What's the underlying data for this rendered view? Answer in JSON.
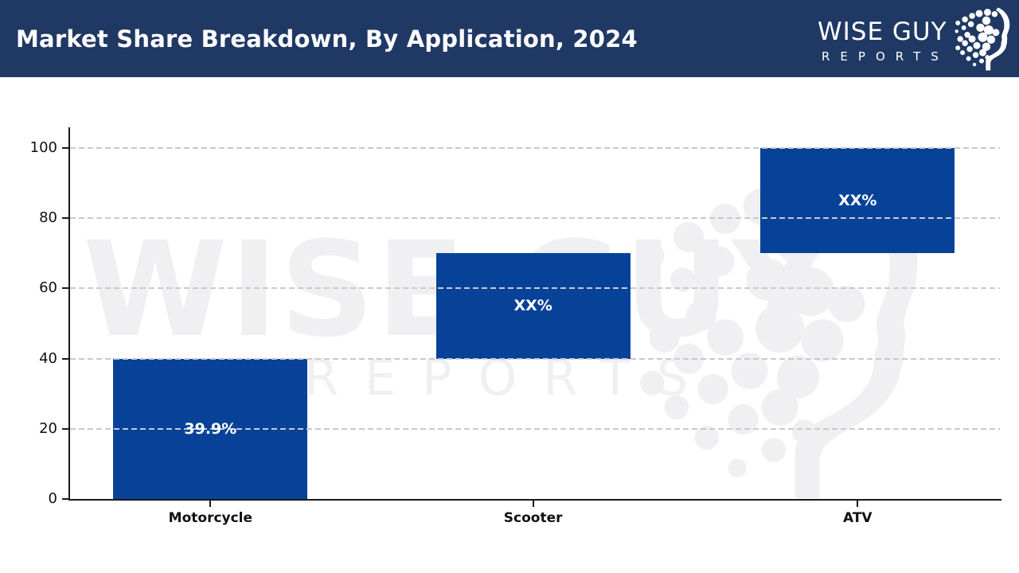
{
  "header": {
    "title": "Market Share Breakdown, By Application, 2024",
    "bg_color": "#203864",
    "logo": {
      "line1": "WISE GUY",
      "line2": "REPORTS"
    }
  },
  "watermark": {
    "line1": "WISE GUY",
    "line2": "REPORTS"
  },
  "chart_data": {
    "type": "bar",
    "subtype": "floating-waterfall",
    "title": "Market Share Breakdown, By Application, 2024",
    "categories": [
      "Motorcycle",
      "Scooter",
      "ATV"
    ],
    "segments": [
      {
        "category": "Motorcycle",
        "start": 0,
        "end": 39.9,
        "label": "39.9%"
      },
      {
        "category": "Scooter",
        "start": 40,
        "end": 70,
        "label": "XX%"
      },
      {
        "category": "ATV",
        "start": 70,
        "end": 100,
        "label": "XX%"
      }
    ],
    "ylim": [
      0,
      100
    ],
    "yticks": [
      0,
      20,
      40,
      60,
      80,
      100
    ],
    "bar_color": "#084298",
    "grid": "horizontal-dashed",
    "grid_color": "#c7cad0",
    "legend": "none",
    "axis_color": "#1a1a1a"
  }
}
